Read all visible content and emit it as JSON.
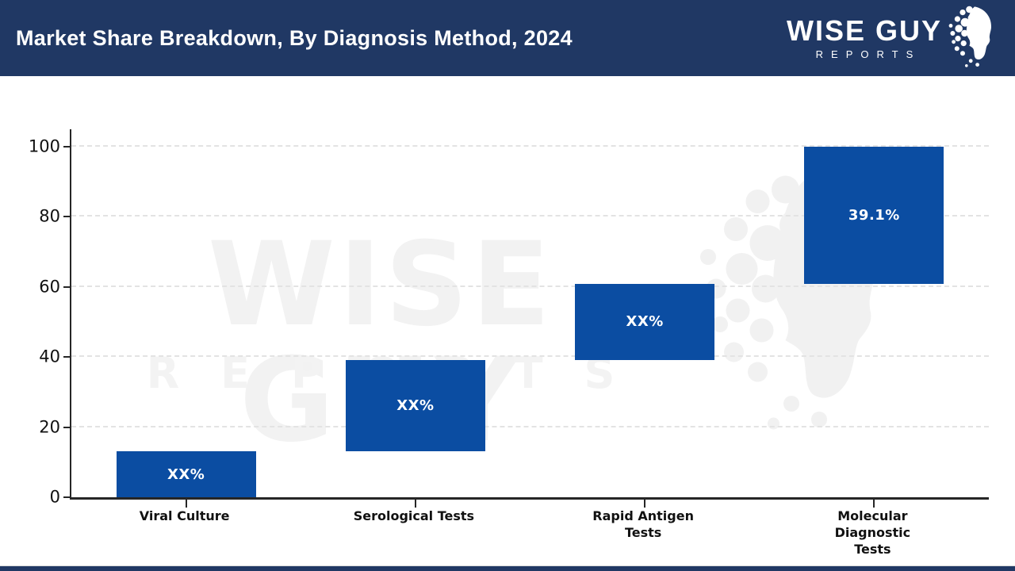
{
  "header": {
    "title": "Market Share Breakdown, By Diagnosis Method, 2024",
    "logo": {
      "line1": "WISE GUY",
      "line2": "REPORTS"
    }
  },
  "watermark": {
    "line1": "WISE GUY",
    "line2": "REPORTS"
  },
  "chart_data": {
    "type": "bar",
    "subtype": "waterfall",
    "title": "Market Share Breakdown, By Diagnosis Method, 2024",
    "categories": [
      "Viral Culture",
      "Serological Tests",
      "Rapid Antigen\nTests",
      "Molecular\nDiagnostic Tests"
    ],
    "bars": [
      {
        "category": "Viral Culture",
        "label": "XX%",
        "start": 0,
        "end": 13.1,
        "value": 13.1
      },
      {
        "category": "Serological Tests",
        "label": "XX%",
        "start": 13.1,
        "end": 39.1,
        "value": 26.0
      },
      {
        "category": "Rapid Antigen Tests",
        "label": "XX%",
        "start": 39.1,
        "end": 60.9,
        "value": 21.8
      },
      {
        "category": "Molecular Diagnostic Tests",
        "label": "39.1%",
        "start": 60.9,
        "end": 100.0,
        "value": 39.1
      }
    ],
    "y_ticks": [
      0,
      20,
      40,
      60,
      80,
      100
    ],
    "ylim": [
      0,
      104.9
    ],
    "xlabel": "",
    "ylabel": "",
    "grid": "horizontal-dashed",
    "legend": "none",
    "bar_color": "#0b4da2",
    "bar_label_color": "#ffffff",
    "axis_color": "#262626",
    "gridline_color": "#e3e3e3"
  },
  "colors": {
    "header_background": "#203864",
    "footer_background": "#203864",
    "page_background": "#ffffff",
    "title_text": "#ffffff",
    "watermark": "#f2f2f2"
  }
}
